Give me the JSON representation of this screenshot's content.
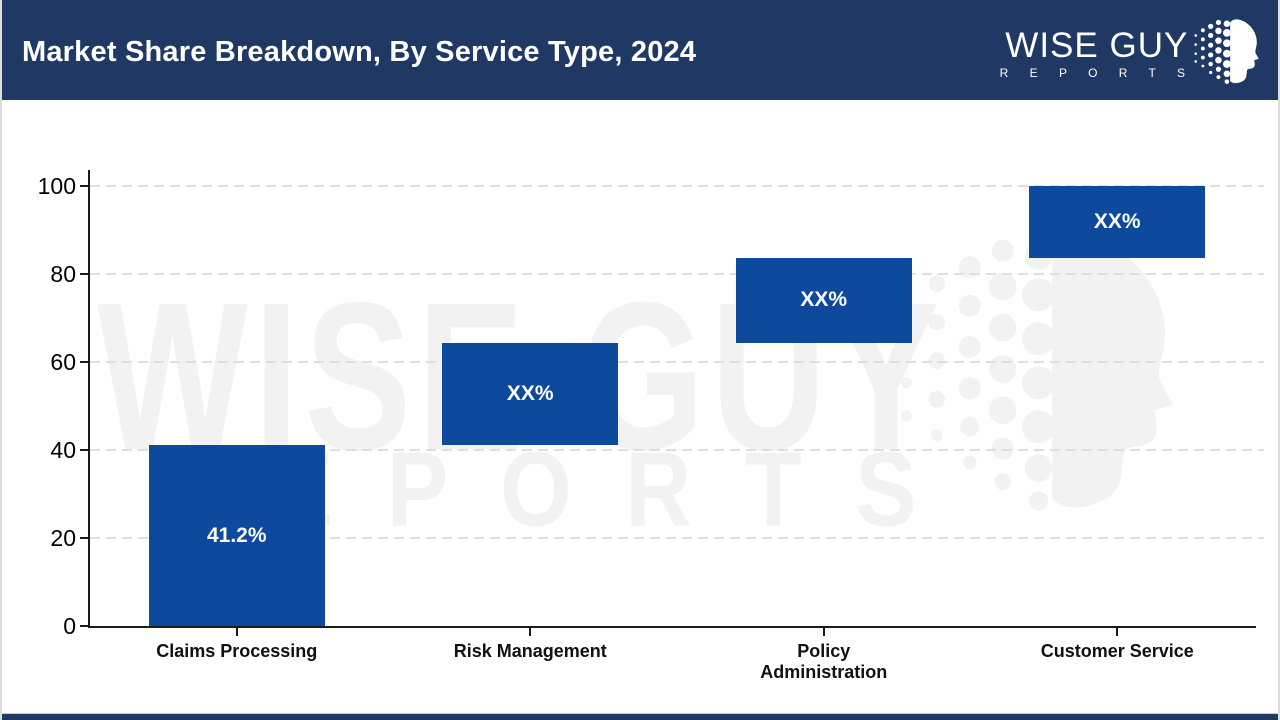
{
  "header": {
    "title": "Market Share Breakdown, By Service Type, 2024",
    "bg_color": "#1f3864",
    "logo": {
      "name": "WISE GUY",
      "sub": "R E P O R T S",
      "icon": "dotted-head-icon"
    }
  },
  "watermark": {
    "line1": "WISE GUY",
    "line2": "R E P O R T S"
  },
  "chart_data": {
    "type": "bar",
    "subtype": "floating-waterfall",
    "title": "Market Share Breakdown, By Service Type, 2024",
    "categories": [
      "Claims Processing",
      "Risk Management",
      "Policy\nAdministration",
      "Customer Service"
    ],
    "segments": [
      {
        "category": "Claims Processing",
        "start": 0,
        "end": 41.2,
        "label": "41.2%"
      },
      {
        "category": "Risk Management",
        "start": 41.2,
        "end": 64.3,
        "label": "XX%"
      },
      {
        "category": "Policy\nAdministration",
        "start": 64.3,
        "end": 83.6,
        "label": "XX%"
      },
      {
        "category": "Customer Service",
        "start": 83.6,
        "end": 100,
        "label": "XX%"
      }
    ],
    "xlabel": "",
    "ylabel": "",
    "ylim": [
      0,
      100
    ],
    "yticks": [
      0,
      20,
      40,
      60,
      80,
      100
    ],
    "grid": "horizontal-dashed",
    "legend": "none",
    "bar_color": "#0d4a9e",
    "bar_label_color": "#ffffff",
    "axis_color": "#1a1a1a"
  }
}
